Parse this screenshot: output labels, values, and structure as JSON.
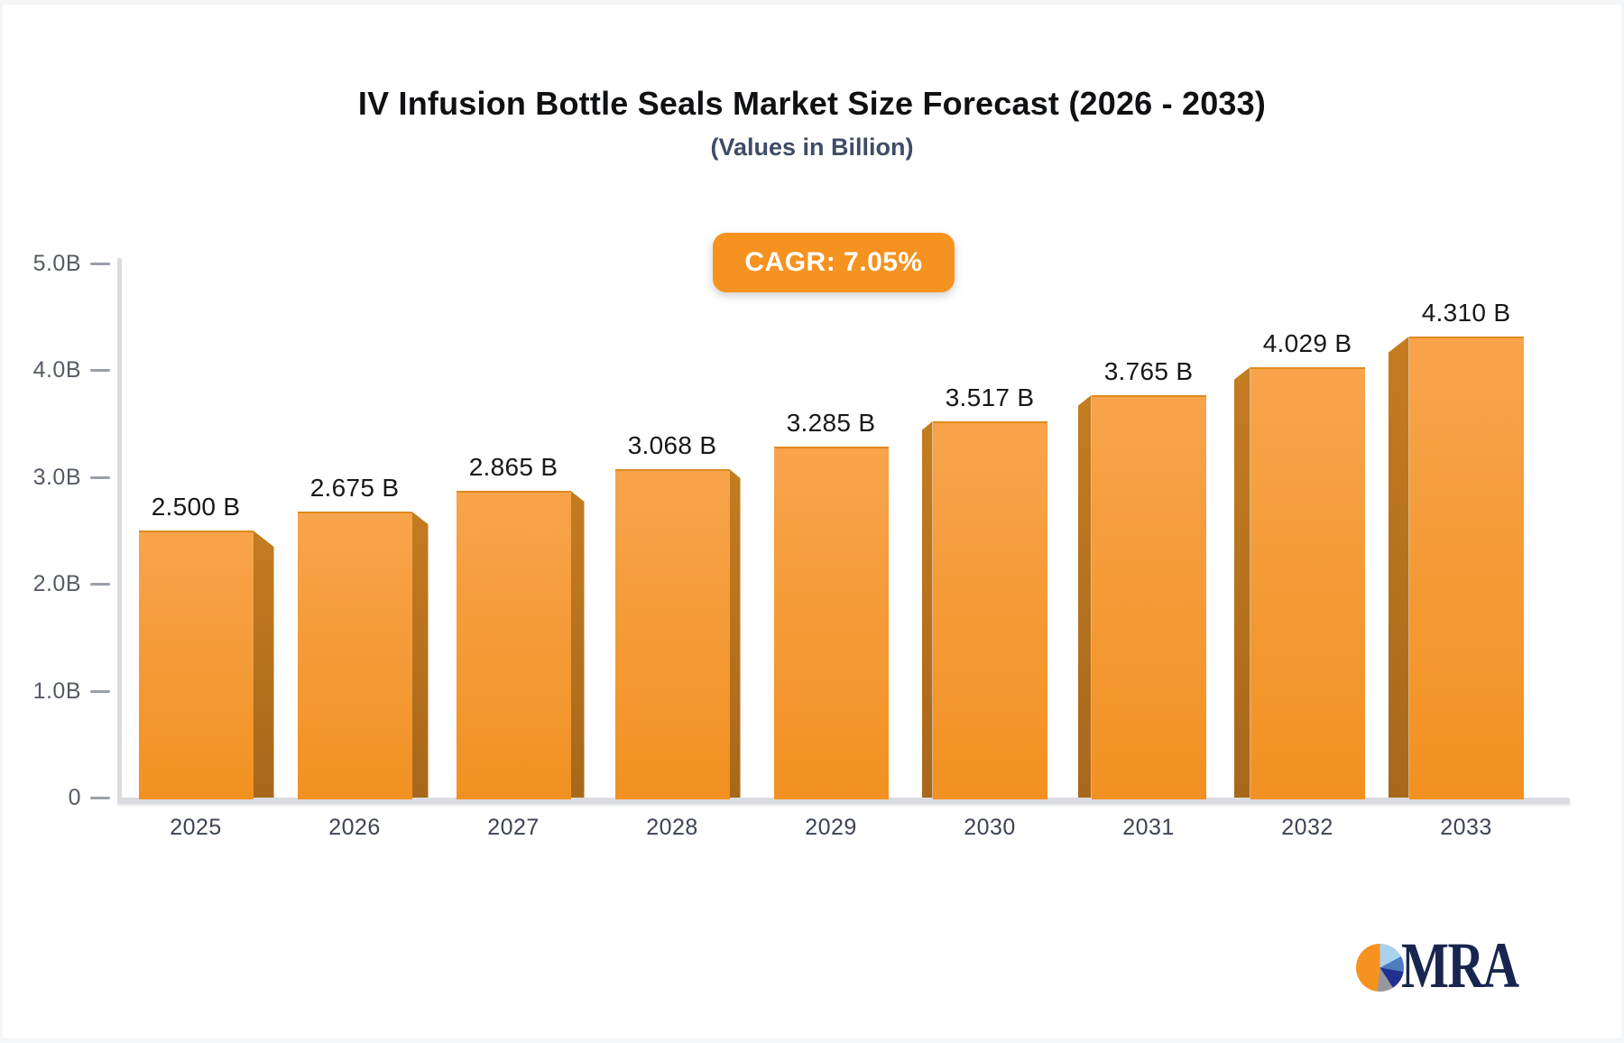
{
  "title": "IV Infusion Bottle Seals Market Size Forecast (2026 - 2033)",
  "subtitle": "(Values in Billion)",
  "badge": {
    "label": "CAGR: 7.05%"
  },
  "logo": {
    "text": "MRA"
  },
  "colors": {
    "accent_orange": "#f6921f",
    "bar_face_top": "#f7a44c",
    "bar_face_bottom": "#f29121",
    "bar_side_top": "#c47c20",
    "bar_side_bottom": "#a8681b",
    "axis_gray": "#dbdce1",
    "logo_navy": "#18264f"
  },
  "chart_data": {
    "type": "bar",
    "title": "IV Infusion Bottle Seals Market Size Forecast (2026 - 2033)",
    "subtitle": "(Values in Billion)",
    "categories": [
      "2025",
      "2026",
      "2027",
      "2028",
      "2029",
      "2030",
      "2031",
      "2032",
      "2033"
    ],
    "values": [
      2.5,
      2.675,
      2.865,
      3.068,
      3.285,
      3.517,
      3.765,
      4.029,
      4.31
    ],
    "value_labels": [
      "2.500 B",
      "2.675 B",
      "2.865 B",
      "3.068 B",
      "3.285 B",
      "3.517 B",
      "3.765 B",
      "4.029 B",
      "4.310 B"
    ],
    "y_ticks": [
      {
        "label": "5.0B",
        "value": 5.0
      },
      {
        "label": "4.0B",
        "value": 4.0
      },
      {
        "label": "3.0B",
        "value": 3.0
      },
      {
        "label": "2.0B",
        "value": 2.0
      },
      {
        "label": "1.0B",
        "value": 1.0
      },
      {
        "label": "0",
        "value": 0.0
      }
    ],
    "ylim": [
      0,
      5
    ],
    "unit": "Billion",
    "annotation": "CAGR: 7.05%",
    "grid": false,
    "legend": false,
    "style": "3d-perspective-columns"
  }
}
